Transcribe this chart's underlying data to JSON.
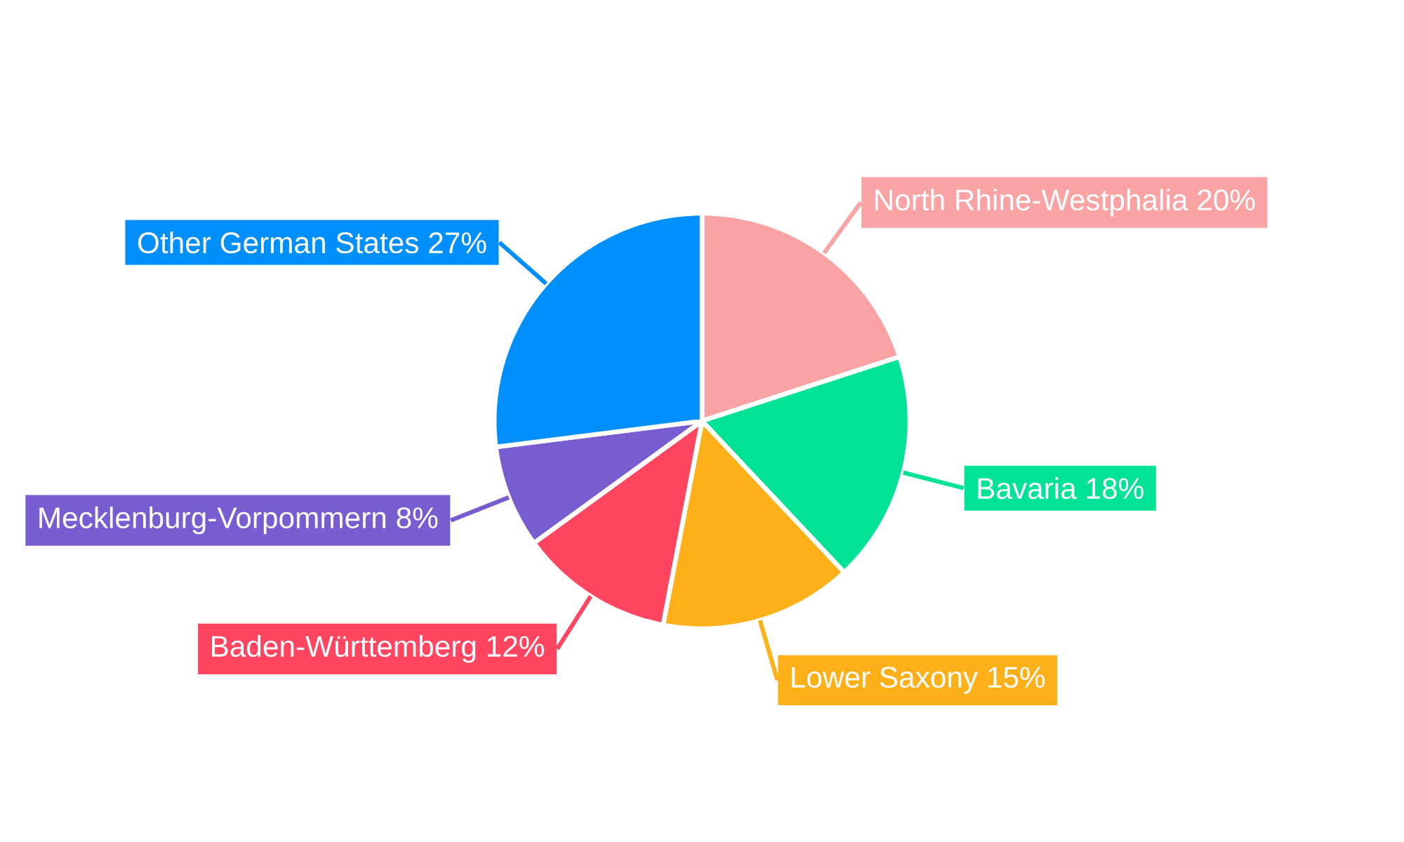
{
  "chart_data": {
    "type": "pie",
    "categories": [
      "North Rhine-Westphalia",
      "Bavaria",
      "Lower Saxony",
      "Baden-Württemberg",
      "Mecklenburg-Vorpommern",
      "Other German States"
    ],
    "values": [
      20,
      18,
      15,
      12,
      8,
      27
    ],
    "value_labels": [
      "20%",
      "18%",
      "15%",
      "12%",
      "8%",
      "27%"
    ],
    "colors": [
      "#f9a3a4",
      "#00e396",
      "#feb019",
      "#ff4560",
      "#775dd0",
      "#008ffb"
    ]
  }
}
